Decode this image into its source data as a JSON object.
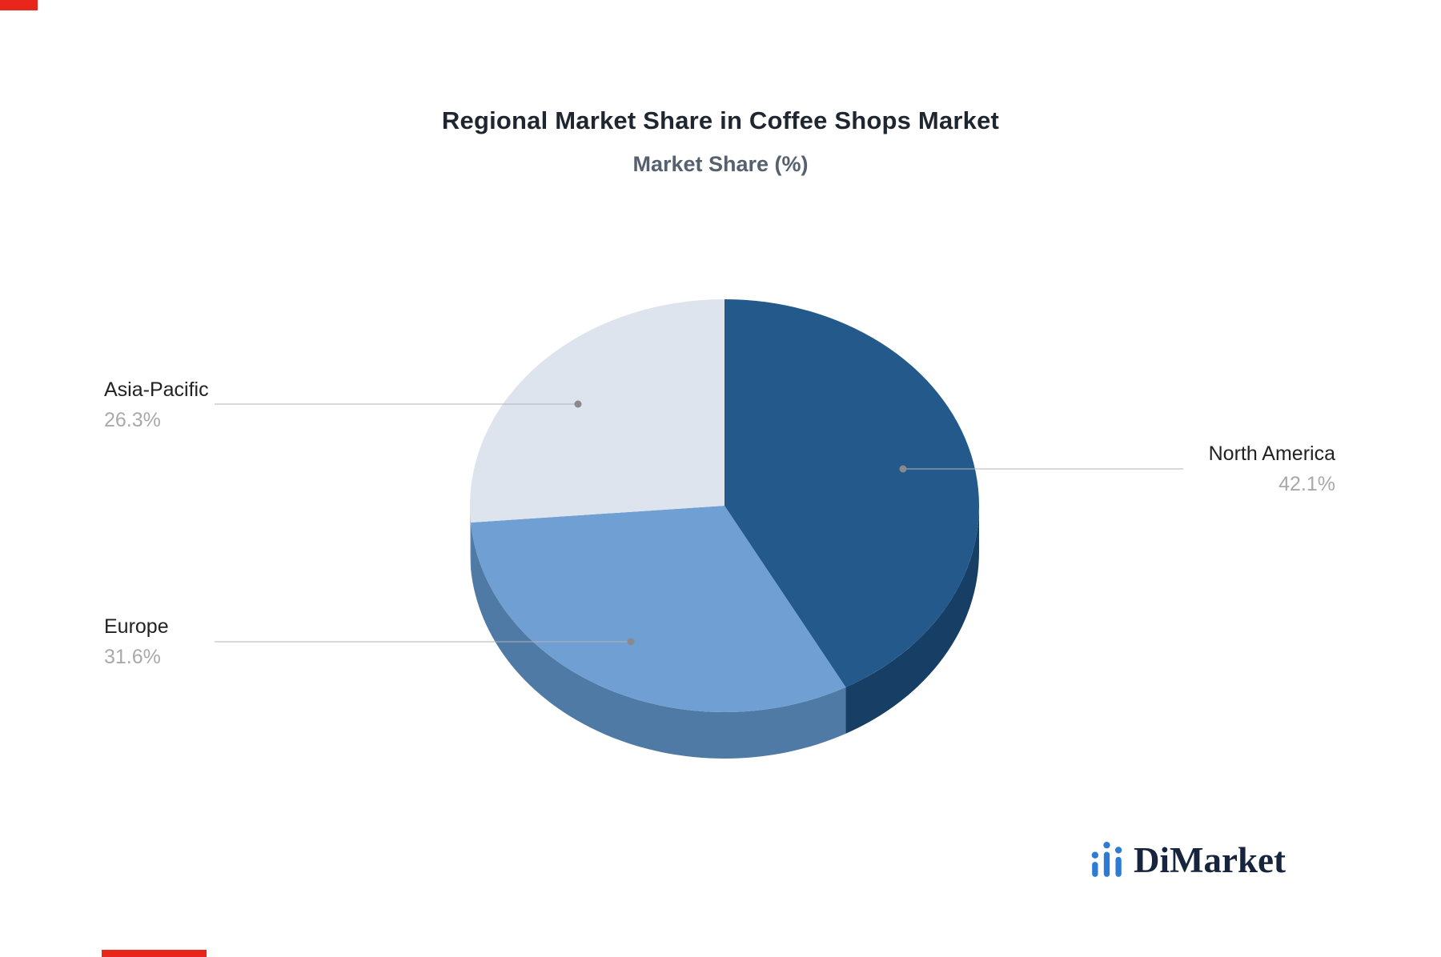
{
  "chart_data": {
    "type": "pie",
    "style": "3d",
    "title": "Regional Market Share in Coffee Shops Market",
    "subtitle": "Market Share (%)",
    "unit": "%",
    "clockwise": true,
    "start_angle_deg": 0,
    "legend": false,
    "slices": [
      {
        "label": "North America",
        "value": 42.1,
        "display": "42.1%",
        "color": "#24598b",
        "side_color": "#173f66"
      },
      {
        "label": "Europe",
        "value": 31.6,
        "display": "31.6%",
        "color": "#6f9fd3",
        "side_color": "#4f7aa6"
      },
      {
        "label": "Asia-Pacific",
        "value": 26.3,
        "display": "26.3%",
        "color": "#dde4ee",
        "side_color": "#b9c3d3"
      }
    ]
  },
  "brand": {
    "name": "DiMarket",
    "icon": "bar-chart-icon",
    "text_color": "#16243e",
    "icon_color": "#2e7bd3"
  },
  "artifacts": {
    "color": "#e8261c"
  }
}
